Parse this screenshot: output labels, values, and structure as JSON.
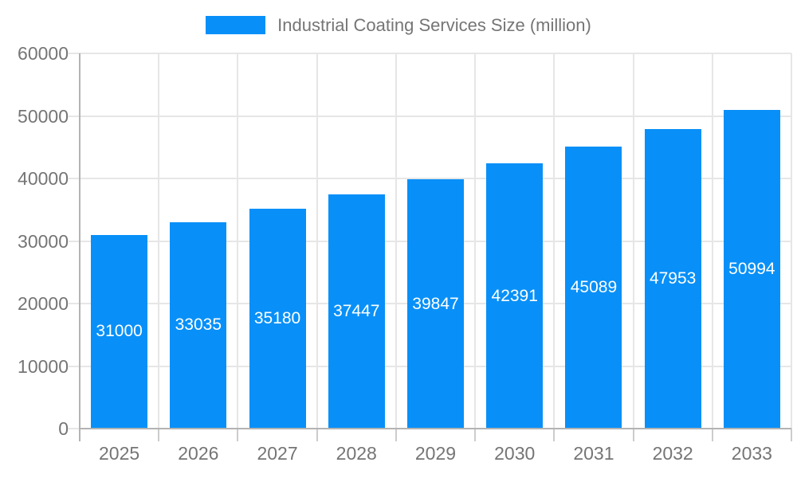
{
  "page": {
    "background_color": "#ffffff"
  },
  "legend": {
    "label": "Industrial Coating Services Size (million)",
    "swatch_color": "#0890f8",
    "position": "top-center"
  },
  "chart_data": {
    "type": "bar",
    "title": "Industrial Coating Services Size (million)",
    "categories": [
      "2025",
      "2026",
      "2027",
      "2028",
      "2029",
      "2030",
      "2031",
      "2032",
      "2033"
    ],
    "values": [
      31000,
      33035,
      35180,
      37447,
      39847,
      42391,
      45089,
      47953,
      50994
    ],
    "series_name": "Industrial Coating Services Size (million)",
    "xlabel": "",
    "ylabel": "",
    "ylim": [
      0,
      60000
    ],
    "ytick_step": 10000,
    "yticks": [
      "0",
      "10000",
      "20000",
      "30000",
      "40000",
      "50000",
      "60000"
    ],
    "grid": true,
    "vertical_gridlines": true,
    "legend_position": "top",
    "value_labels": "inside-center",
    "colors": {
      "bar": "#0890f8",
      "value_label_text": "#ffffff",
      "axis_text": "#757575",
      "gridline": "#e6e6e6",
      "axis_line": "#b3b3b3"
    }
  }
}
